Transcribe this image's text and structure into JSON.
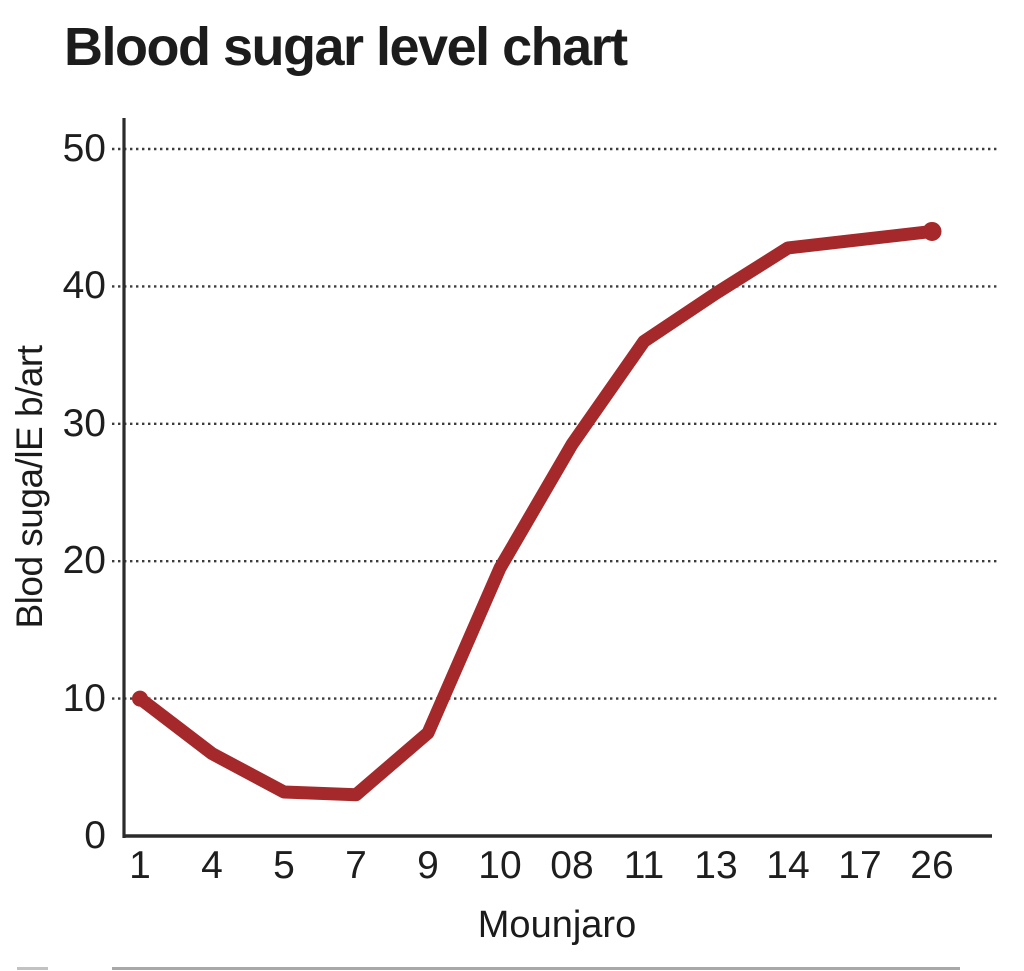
{
  "title": "Blood sugar level chart",
  "chart_data": {
    "type": "line",
    "title": "Blood sugar level chart",
    "xlabel": "Mounjaro",
    "ylabel": "Blod suga/lE b/art",
    "x_tick_labels": [
      "1",
      "4",
      "5",
      "7",
      "9",
      "10",
      "08",
      "11",
      "13",
      "14",
      "17",
      "26"
    ],
    "values": [
      10,
      6,
      3.2,
      3,
      7.5,
      19.5,
      28.5,
      36,
      39.5,
      42.8,
      43.4,
      44
    ],
    "y_ticks": [
      0,
      10,
      20,
      30,
      40,
      50
    ],
    "ylim": [
      0,
      50
    ],
    "grid": "horizontal dotted gridlines at 10,20,30,40,50; solid axis at 0",
    "legend": "none",
    "line_color": "#A5282A",
    "axis_color": "#2b2b2b",
    "grid_color": "#3c3c3c",
    "markers": "dot at first and last point"
  }
}
